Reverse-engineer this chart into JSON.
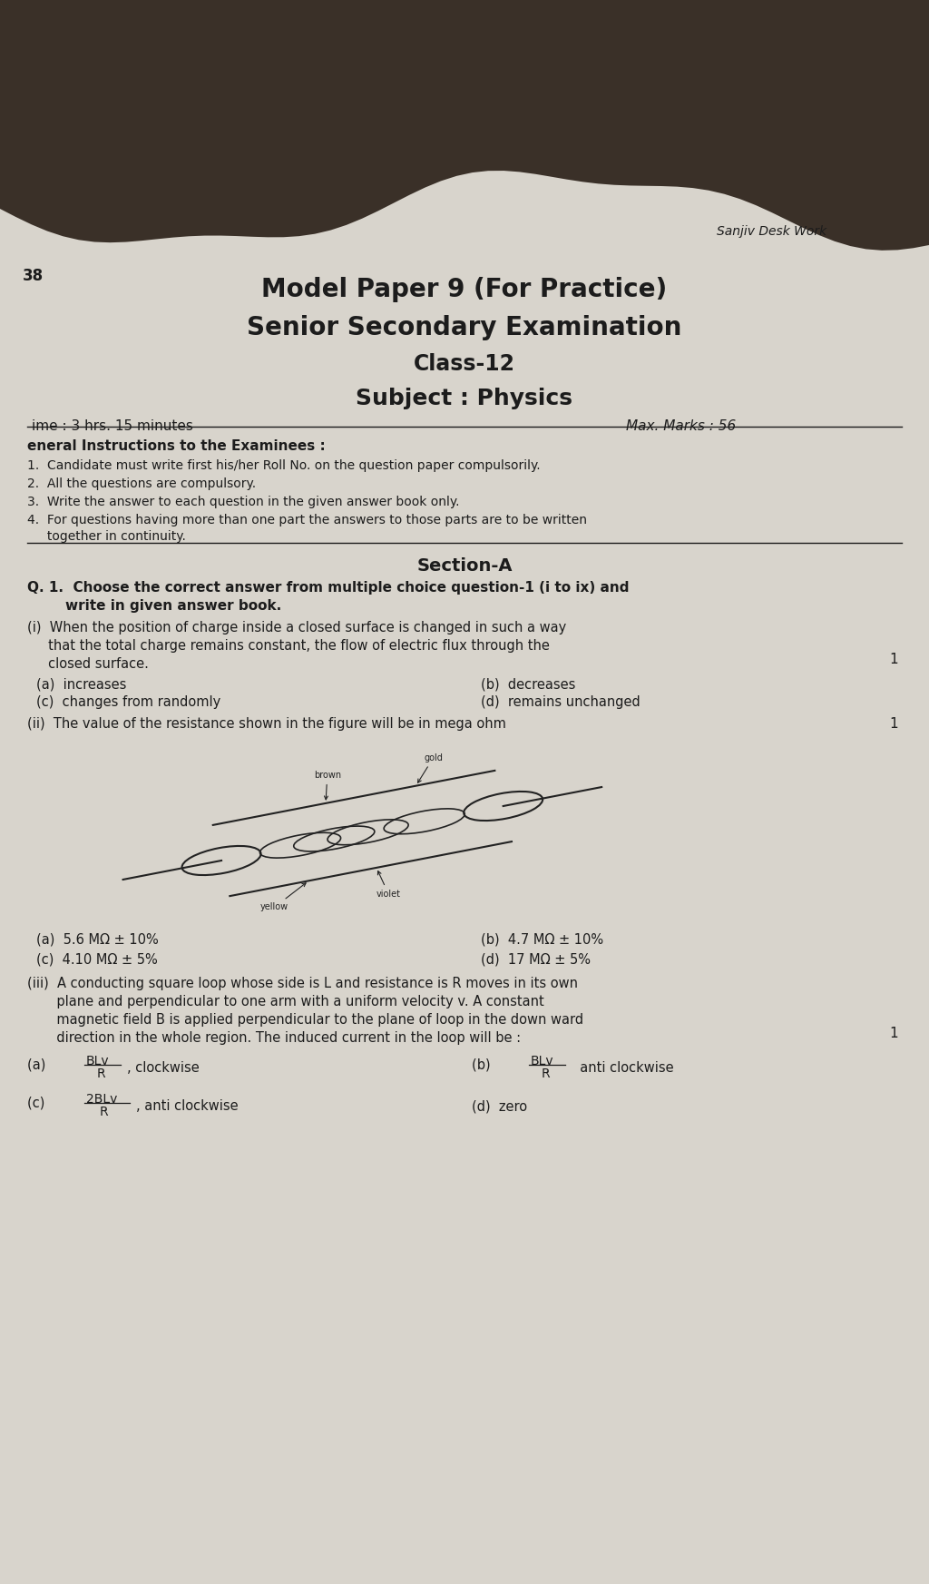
{
  "bg_top_color": "#3a3028",
  "bg_color": "#b8b4ac",
  "paper_color": "#d8d4cc",
  "page_number": "38",
  "sanjiv_text": "Sanjiv Desk Work",
  "title1": "Model Paper 9 (For Practice)",
  "title2": "Senior Secondary Examination",
  "title3": "Class-12",
  "title4": "Subject : Physics",
  "max_marks": "Max. Marks : 56",
  "time_text": "ime : 3 hrs. 15 minutes",
  "instructions_header": "eneral Instructions to the Examinees :",
  "instr1": "1.  Candidate must write first his/her Roll No. on the question paper compulsorily.",
  "instr2": "2.  All the questions are compulsory.",
  "instr3": "3.  Write the answer to each question in the given answer book only.",
  "instr4a": "4.  For questions having more than one part the answers to those parts are to be written",
  "instr4b": "     together in continuity.",
  "section_a": "Section-A",
  "q1a": "Q. 1.  Choose the correct answer from multiple choice question-1 (i to ix) and",
  "q1b": "        write in given answer book.",
  "qi_a": "(i)  When the position of charge inside a closed surface is changed in such a way",
  "qi_b": "     that the total charge remains constant, the flow of electric flux through the",
  "qi_c": "     closed surface.",
  "qi_opt_a": "(a)  increases",
  "qi_opt_b": "(b)  decreases",
  "qi_opt_c": "(c)  changes from randomly",
  "qi_opt_d": "(d)  remains unchanged",
  "qii_line": "(ii)  The value of the resistance shown in the figure will be in mega ohm",
  "qii_opt_a": "(a)  5.6 MΩ ± 10%",
  "qii_opt_b": "(b)  4.7 MΩ ± 10%",
  "qii_opt_c": "(c)  4.10 MΩ ± 5%",
  "qii_opt_d": "(d)  17 MΩ ± 5%",
  "qiii_a": "(iii)  A conducting square loop whose side is L and resistance is R moves in its own",
  "qiii_b": "       plane and perpendicular to one arm with a uniform velocity v. A constant",
  "qiii_c": "       magnetic field B is applied perpendicular to the plane of loop in the down ward",
  "qiii_d": "       direction in the whole region. The induced current in the loop will be :",
  "qiii_opt_a1": "(a)  ",
  "qiii_opt_a2": "BLv",
  "qiii_opt_a3": "R",
  "qiii_opt_a4": ", clockwise",
  "qiii_opt_b1": "(b)  ",
  "qiii_opt_b2": "BLv",
  "qiii_opt_b3": "R",
  "qiii_opt_b4": "  anti clockwise",
  "qiii_opt_c1": "(c)  ",
  "qiii_opt_c2": "2BLv",
  "qiii_opt_c3": "R",
  "qiii_opt_c4": ", anti clockwise",
  "qiii_opt_d": "(d)  zero",
  "text_color": "#1c1c1c",
  "mark1": "1"
}
